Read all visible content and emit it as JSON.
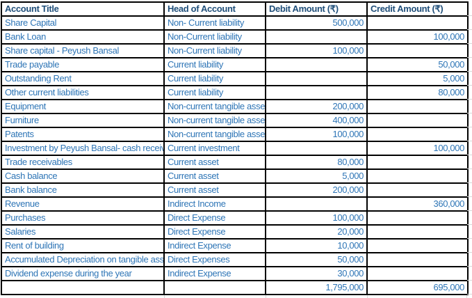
{
  "table": {
    "columns": [
      "Account Title",
      "Head of Account",
      "Debit Amount (₹)",
      "Credit Amount (₹)"
    ],
    "rows": [
      {
        "title": "Share Capital",
        "head": "Non- Current liability",
        "debit": "500,000",
        "credit": ""
      },
      {
        "title": "Bank Loan",
        "head": "Non-Current liability",
        "debit": "",
        "credit": "100,000"
      },
      {
        "title": "Share capital - Peyush Bansal",
        "head": "Non-Current liability",
        "debit": "100,000",
        "credit": ""
      },
      {
        "title": "Trade payable",
        "head": "Current liability",
        "debit": "",
        "credit": "50,000"
      },
      {
        "title": "Outstanding Rent",
        "head": "Current liability",
        "debit": "",
        "credit": "5,000"
      },
      {
        "title": "Other current liabilities",
        "head": "Current liability",
        "debit": "",
        "credit": "80,000"
      },
      {
        "title": "Equipment",
        "head": "Non-current tangible asset",
        "debit": "200,000",
        "credit": ""
      },
      {
        "title": "Furniture",
        "head": "Non-current tangible asset",
        "debit": "400,000",
        "credit": ""
      },
      {
        "title": "Patents",
        "head": "Non-current tangible asset",
        "debit": "100,000",
        "credit": ""
      },
      {
        "title": "Investment by Peyush Bansal- cash received",
        "head": "Current investment",
        "debit": "",
        "credit": "100,000"
      },
      {
        "title": "Trade receivables",
        "head": "Current asset",
        "debit": "80,000",
        "credit": ""
      },
      {
        "title": "Cash balance",
        "head": "Current asset",
        "debit": "5,000",
        "credit": ""
      },
      {
        "title": "Bank balance",
        "head": "Current asset",
        "debit": "200,000",
        "credit": ""
      },
      {
        "title": "Revenue",
        "head": "Indirect Income",
        "debit": "",
        "credit": "360,000"
      },
      {
        "title": "Purchases",
        "head": "Direct Expense",
        "debit": "100,000",
        "credit": ""
      },
      {
        "title": "Salaries",
        "head": "Direct Expense",
        "debit": "20,000",
        "credit": ""
      },
      {
        "title": "Rent of building",
        "head": "Indirect Expense",
        "debit": "10,000",
        "credit": ""
      },
      {
        "title": "Accumulated Depreciation on tangible assets",
        "head": "Direct Expenses",
        "debit": "50,000",
        "credit": ""
      },
      {
        "title": "Dividend expense during the year",
        "head": "Indirect Expense",
        "debit": "30,000",
        "credit": ""
      }
    ],
    "total_row": {
      "title": "",
      "head": "",
      "debit": "1,795,000",
      "credit": "695,000"
    }
  },
  "colors": {
    "header_text": "#1F4E79",
    "body_text": "#2E75B6",
    "border": "#000000",
    "gridline": "#D9D9D9",
    "background": "#FFFFFF"
  }
}
